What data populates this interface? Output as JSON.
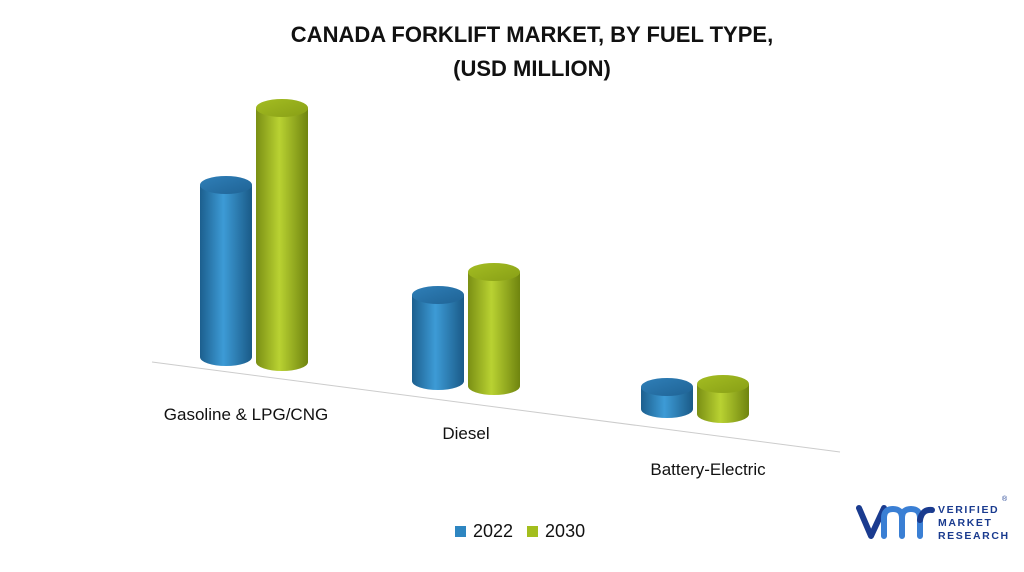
{
  "chart_data": {
    "type": "bar",
    "title": [
      "CANADA FORKLIFT MARKET, BY FUEL TYPE,",
      "(USD MILLION)"
    ],
    "categories": [
      "Gasoline & LPG/CNG",
      "Diesel",
      "Battery-Electric"
    ],
    "series": [
      {
        "name": "2022",
        "values": [
          172,
          86,
          22
        ],
        "color": "#2e86c1"
      },
      {
        "name": "2030",
        "values": [
          254,
          114,
          30
        ],
        "color": "#a3be1e"
      }
    ],
    "legend_position": "bottom-center",
    "grid": false
  },
  "logo": {
    "lines": [
      "VERIFIED",
      "MARKET",
      "RESEARCH"
    ],
    "registered": "®",
    "color": "#1a3b8f"
  }
}
